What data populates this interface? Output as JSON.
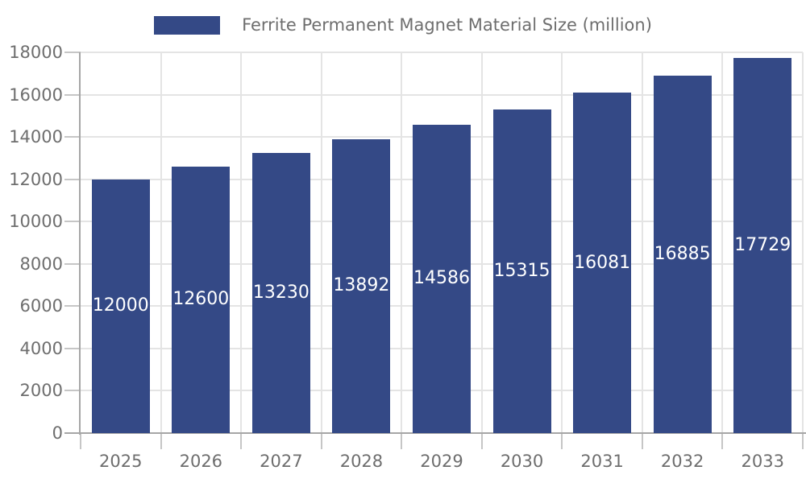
{
  "legend": {
    "label": "Ferrite Permanent Magnet Material Size (million)",
    "swatch_color": "#344986"
  },
  "chart_data": {
    "type": "bar",
    "title": "Ferrite Permanent Magnet Material Size (million)",
    "categories": [
      "2025",
      "2026",
      "2027",
      "2028",
      "2029",
      "2030",
      "2031",
      "2032",
      "2033"
    ],
    "series": [
      {
        "name": "Ferrite Permanent Magnet Material Size (million)",
        "values": [
          12000,
          12600,
          13230,
          13892,
          14586,
          15315,
          16081,
          16885,
          17729
        ]
      }
    ],
    "xlabel": "",
    "ylabel": "",
    "ylim": [
      0,
      18000
    ],
    "ytick_step": 2000,
    "grid": true,
    "legend_position": "top-center",
    "value_labels": "inside-center",
    "colors": {
      "bar": "#344986",
      "value_label": "#ffffff",
      "axis_line": "#a6a6a6",
      "tick": "#c6c6c6",
      "gridline": "#e4e4e4",
      "text": "#6e6e6e",
      "background": "#ffffff"
    }
  }
}
